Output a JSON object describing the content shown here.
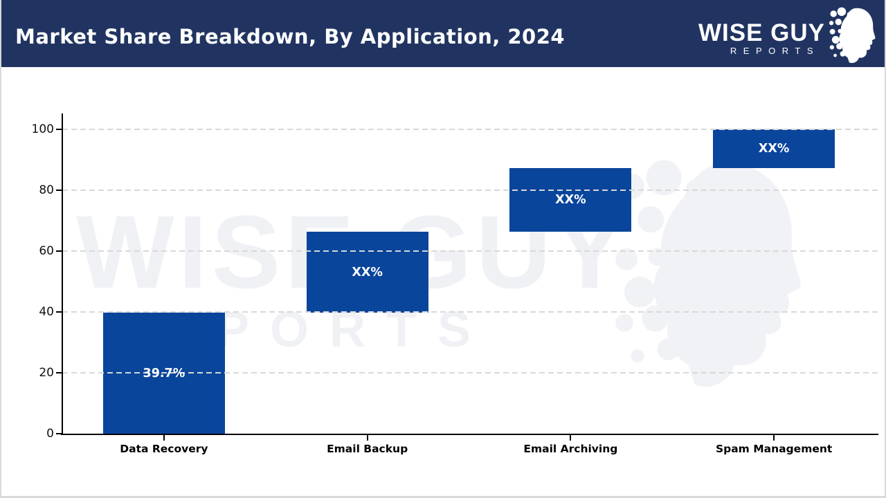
{
  "header": {
    "title": "Market Share Breakdown, By Application, 2024",
    "bg_color": "#213461",
    "logo": {
      "line1": "WISE GUY",
      "line2": "REPORTS",
      "head_icon": "dotted-head-profile"
    }
  },
  "watermark": {
    "line1": "WISE GUY",
    "line2": "REPORTS",
    "head_icon": "dotted-head-profile",
    "color": "#f0f1f4"
  },
  "chart_data": {
    "type": "bar",
    "subtype": "waterfall",
    "title": "Market Share Breakdown, By Application, 2024",
    "categories": [
      "Data Recovery",
      "Email Backup",
      "Email Archiving",
      "Spam Management"
    ],
    "series": [
      {
        "name": "Market Share (%)",
        "segments": [
          {
            "category": "Data Recovery",
            "start": 0,
            "end": 39.7,
            "label": "39.7%"
          },
          {
            "category": "Email Backup",
            "start": 39.7,
            "end": 66.3,
            "label": "XX%"
          },
          {
            "category": "Email Archiving",
            "start": 66.3,
            "end": 87.3,
            "label": "XX%"
          },
          {
            "category": "Spam Management",
            "start": 87.3,
            "end": 100,
            "label": "XX%"
          }
        ]
      }
    ],
    "xlabel": "",
    "ylabel": "",
    "ylim": [
      0,
      100
    ],
    "yticks": [
      0,
      20,
      40,
      60,
      80,
      100
    ],
    "grid": "horizontal dashed, drawn over bars",
    "legend": "none",
    "bar_color": "#0a459c",
    "bar_label_color": "#ffffff",
    "axis_color": "#000000",
    "gridline_color": "#d8d8d8"
  }
}
